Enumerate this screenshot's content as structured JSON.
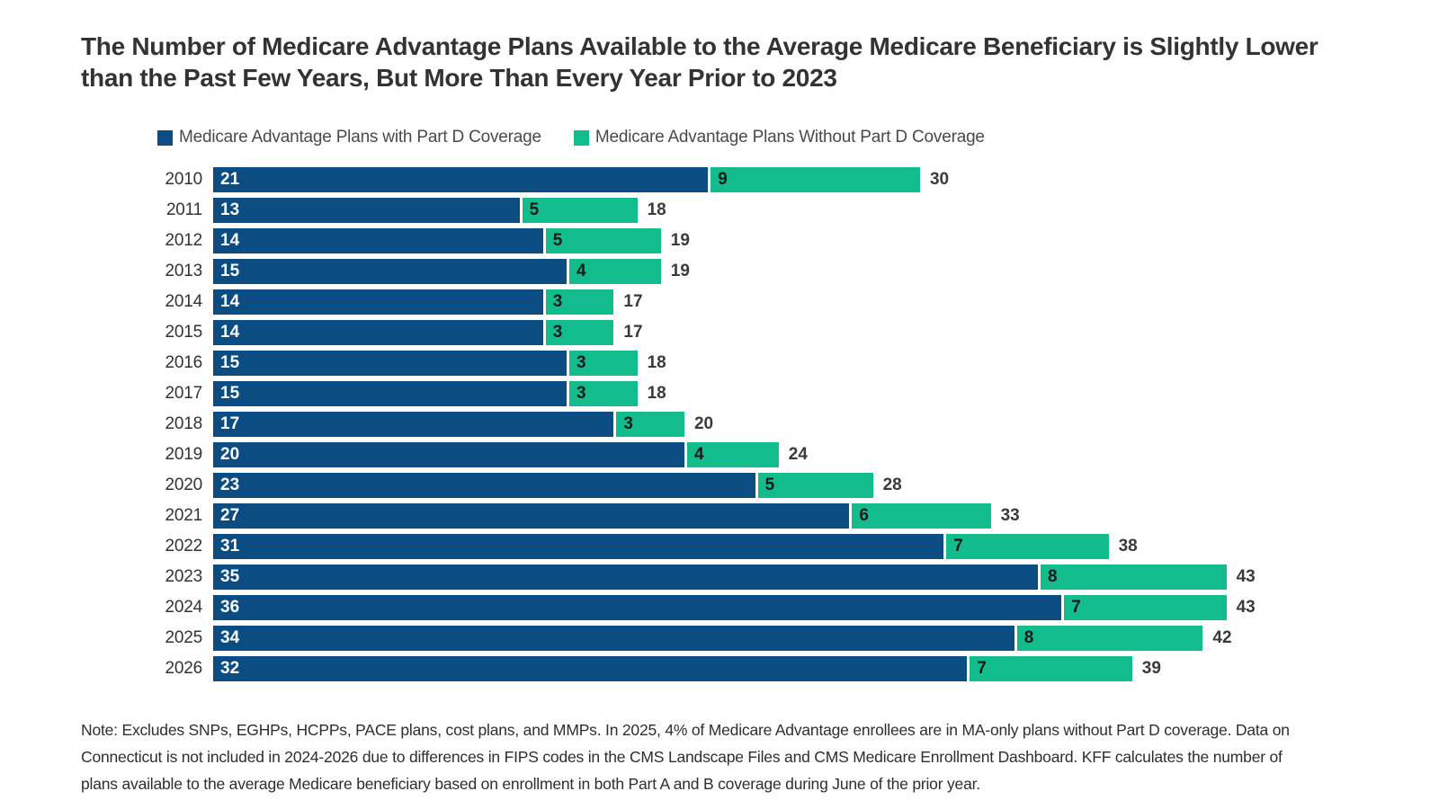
{
  "title": "The Number of Medicare Advantage Plans Available to the Average Medicare Beneficiary is Slightly Lower than the Past Few Years, But More Than Every Year Prior to 2023",
  "legend": [
    {
      "label": "Medicare Advantage Plans with Part D Coverage",
      "color": "#0B4D82"
    },
    {
      "label": "Medicare Advantage Plans Without Part D Coverage",
      "color": "#12BC8C"
    }
  ],
  "chart_data": {
    "type": "bar",
    "orientation": "horizontal",
    "stacked": true,
    "categories": [
      "2010",
      "2011",
      "2012",
      "2013",
      "2014",
      "2015",
      "2016",
      "2017",
      "2018",
      "2019",
      "2020",
      "2021",
      "2022",
      "2023",
      "2024",
      "2025",
      "2026"
    ],
    "series": [
      {
        "name": "Medicare Advantage Plans with Part D Coverage",
        "color": "#0B4D82",
        "values": [
          21,
          13,
          14,
          15,
          14,
          14,
          15,
          15,
          17,
          20,
          23,
          27,
          31,
          35,
          36,
          34,
          32
        ]
      },
      {
        "name": "Medicare Advantage Plans Without Part D Coverage",
        "color": "#12BC8C",
        "values": [
          9,
          5,
          5,
          4,
          3,
          3,
          3,
          3,
          3,
          4,
          5,
          6,
          7,
          8,
          7,
          8,
          7
        ]
      }
    ],
    "totals": [
      30,
      18,
      19,
      19,
      17,
      17,
      18,
      18,
      20,
      24,
      28,
      33,
      38,
      43,
      43,
      42,
      39
    ],
    "xlim": [
      0,
      43
    ],
    "grid": false,
    "legend_position": "top",
    "value_labels": "inside-start-and-total"
  },
  "note": "Note: Excludes SNPs, EGHPs, HCPPs, PACE plans, cost plans, and MMPs. In 2025, 4% of Medicare Advantage enrollees are in MA-only plans without Part D coverage. Data on Connecticut is not included in 2024-2026 due to differences in FIPS codes in the CMS Landscape Files and CMS Medicare Enrollment Dashboard. KFF calculates the number of plans available to the average Medicare beneficiary based on enrollment in both Part A and B coverage during June of the prior year."
}
